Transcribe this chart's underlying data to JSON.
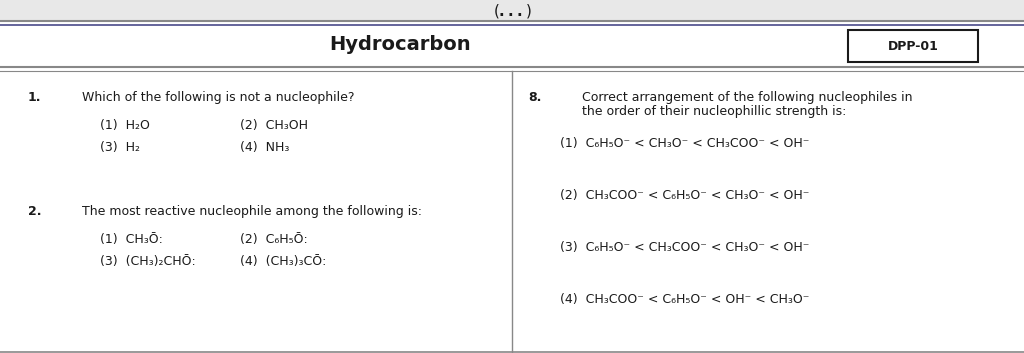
{
  "title": "Hydrocarbon",
  "dpp_label": "DPP-01",
  "bg_color": "#ffffff",
  "top_band_color": "#e8e8e8",
  "header_bg": "#ffffff",
  "q1_num": "1.",
  "q1_text": "Which of the following is not a nucleophile?",
  "q1_opt1a": "(1)  H₂O",
  "q1_opt1b": "(2)  CH₃OH",
  "q1_opt2a": "(3)  H₂",
  "q1_opt2b": "(4)  NH₃",
  "q2_num": "2.",
  "q2_text": "The most reactive nucleophile among the following is:",
  "q2_opt1a": "(1)  CH₃Ō:",
  "q2_opt1b": "(2)  C₆H₅Ō:",
  "q2_opt2a": "(3)  (CH₃)₂CHŌ:",
  "q2_opt2b": "(4)  (CH₃)₃CŌ:",
  "q8_num": "8.",
  "q8_line1": "Correct arrangement of the following nucleophiles in",
  "q8_line2": "the order of their nucleophillic strength is:",
  "q8_opt1": "(1)  C₆H₅O⁻ < CH₃O⁻ < CH₃COO⁻ < OH⁻",
  "q8_opt2": "(2)  CH₃COO⁻ < C₆H₅O⁻ < CH₃O⁻ < OH⁻",
  "q8_opt3": "(3)  C₆H₅O⁻ < CH₃COO⁻ < CH₃O⁻ < OH⁻",
  "q8_opt4": "(4)  CH₃COO⁻ < C₆H₅O⁻ < OH⁻ < CH₃O⁻",
  "line_color": "#888888",
  "text_color": "#1a1a1a",
  "font_size_title": 14,
  "font_size_body": 9,
  "font_size_dpp": 9
}
